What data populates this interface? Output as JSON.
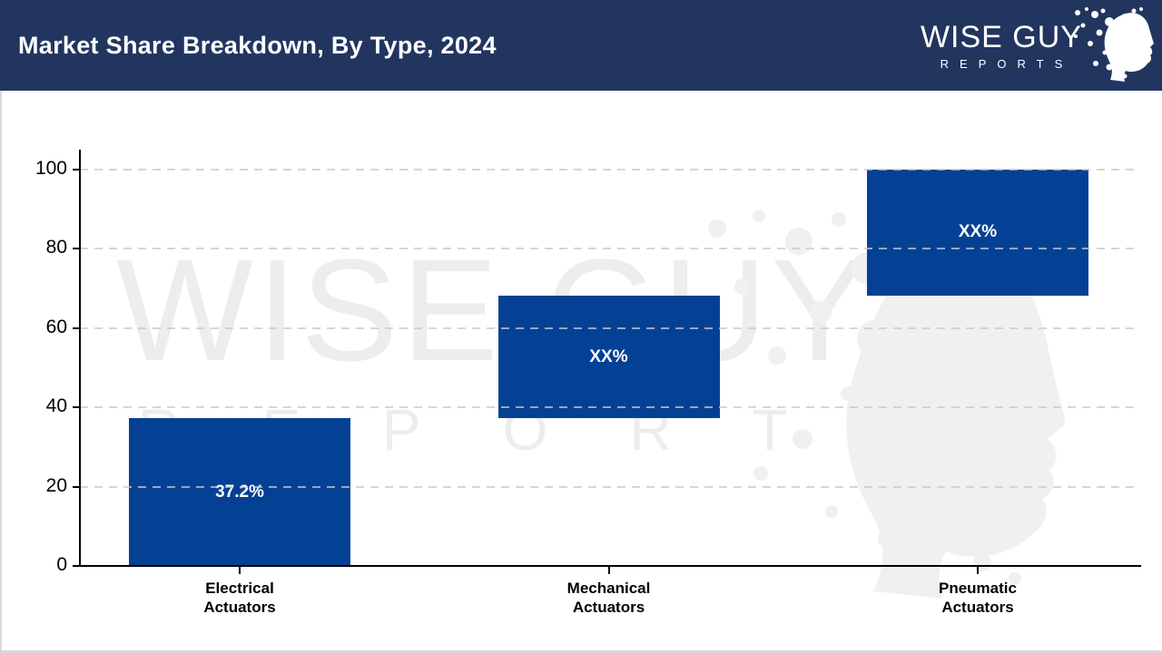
{
  "header": {
    "title": "Market Share Breakdown, By Type, 2024",
    "bg_color": "#21355F",
    "logo": {
      "wordmark": "WISE GUY",
      "subtitle": "REPORTS"
    }
  },
  "watermark": {
    "wordmark": "WISE GUY",
    "subtitle": "REPORTS"
  },
  "chart_data": {
    "type": "bar",
    "subtype": "waterfall-step",
    "title": "Market Share Breakdown, By Type, 2024",
    "categories": [
      "Electrical\nActuators",
      "Mechanical\nActuators",
      "Pneumatic\nActuators"
    ],
    "segments": [
      {
        "category": "Electrical Actuators",
        "start": 0,
        "end": 37.2,
        "label": "37.2%"
      },
      {
        "category": "Mechanical Actuators",
        "start": 37.2,
        "end": 68.2,
        "label": "XX%"
      },
      {
        "category": "Pneumatic Actuators",
        "start": 68.2,
        "end": 100,
        "label": "XX%"
      }
    ],
    "xlabel": "",
    "ylabel": "",
    "ylim": [
      0,
      100
    ],
    "yticks": [
      0,
      20,
      40,
      60,
      80,
      100
    ],
    "grid": "horizontal-dashed",
    "legend": "none",
    "bar_color": "#044194",
    "label_color": "#ffffff",
    "axis_color": "#000000",
    "gridline_color": "#d9d9d9"
  }
}
